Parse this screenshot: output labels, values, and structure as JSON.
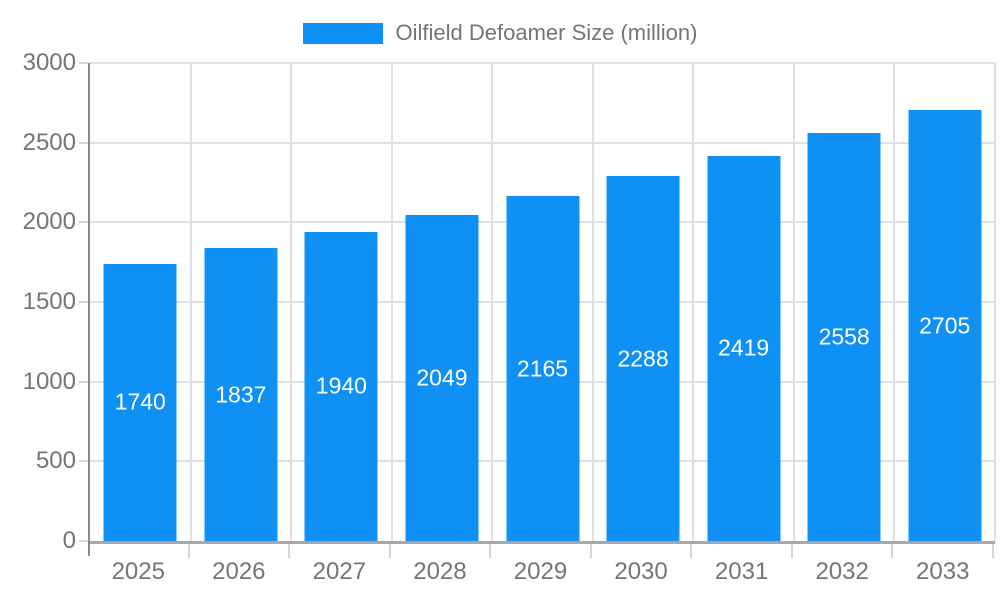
{
  "chart_data": {
    "type": "bar",
    "title": "Oilfield Defoamer Size (million)",
    "legend": [
      "Oilfield Defoamer Size (million)"
    ],
    "legend_position": "top-center",
    "categories": [
      "2025",
      "2026",
      "2027",
      "2028",
      "2029",
      "2030",
      "2031",
      "2032",
      "2033"
    ],
    "series": [
      {
        "name": "Oilfield Defoamer Size (million)",
        "values": [
          1740,
          1837,
          1940,
          2049,
          2165,
          2288,
          2419,
          2558,
          2705
        ]
      }
    ],
    "xlabel": "",
    "ylabel": "",
    "ylim": [
      0,
      3000
    ],
    "yticks": [
      0,
      500,
      1000,
      1500,
      2000,
      2500,
      3000
    ],
    "grid": true,
    "value_labels": "centered-inside-bars",
    "colors": {
      "bar": "#0e90f5",
      "grid": "#e0e0e0",
      "axis_line": "#8a8a8a",
      "baseline": "#a8a8a8",
      "tick": "#d6d6d6",
      "axis_text": "#757575",
      "value_text": "#ffffff",
      "background": "#ffffff"
    }
  }
}
